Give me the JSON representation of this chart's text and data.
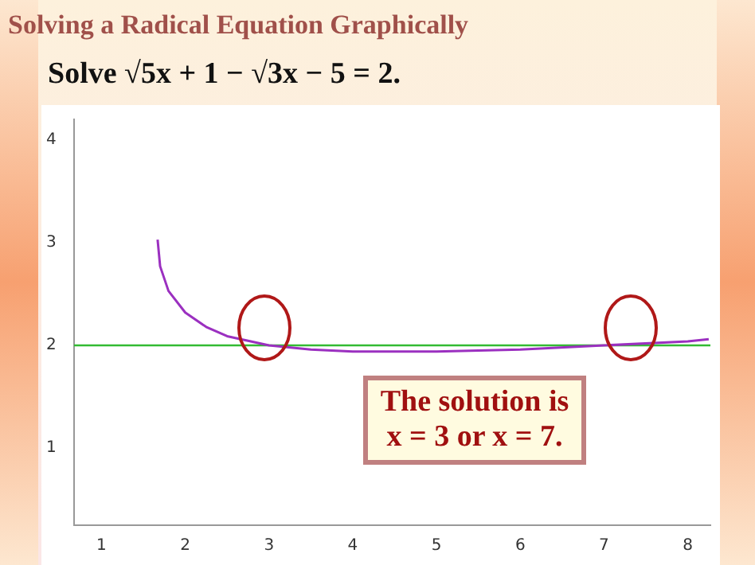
{
  "chart_data": {
    "type": "line",
    "title": "Solving a Radical Equation Graphically",
    "subtitle": "Solve √5x + 1 − √3x − 5 = 2.",
    "x": [
      1.67,
      1.7,
      1.8,
      2,
      2.25,
      2.5,
      3,
      3.5,
      4,
      4.5,
      5,
      6,
      7,
      8,
      8.25
    ],
    "series": [
      {
        "color": "#9b30c0",
        "values": [
          3.03,
          2.77,
          2.53,
          2.32,
          2.18,
          2.09,
          2.0,
          1.96,
          1.94,
          1.94,
          1.94,
          1.96,
          2.0,
          2.04,
          2.06
        ]
      }
    ],
    "ref_lines": [
      {
        "axis": "y",
        "value": 2,
        "color": "#33bb33"
      }
    ],
    "annotations": [
      "The solution is x = 3  or x = 7."
    ],
    "xlim": [
      0.67,
      8.27
    ],
    "ylim": [
      0.25,
      4.2
    ],
    "xticks": [
      1,
      2,
      3,
      4,
      5,
      6,
      7,
      8
    ],
    "yticks": [
      1,
      2,
      3,
      4
    ],
    "grid": false,
    "legend": false,
    "marker": "none",
    "line_style": "solid"
  }
}
